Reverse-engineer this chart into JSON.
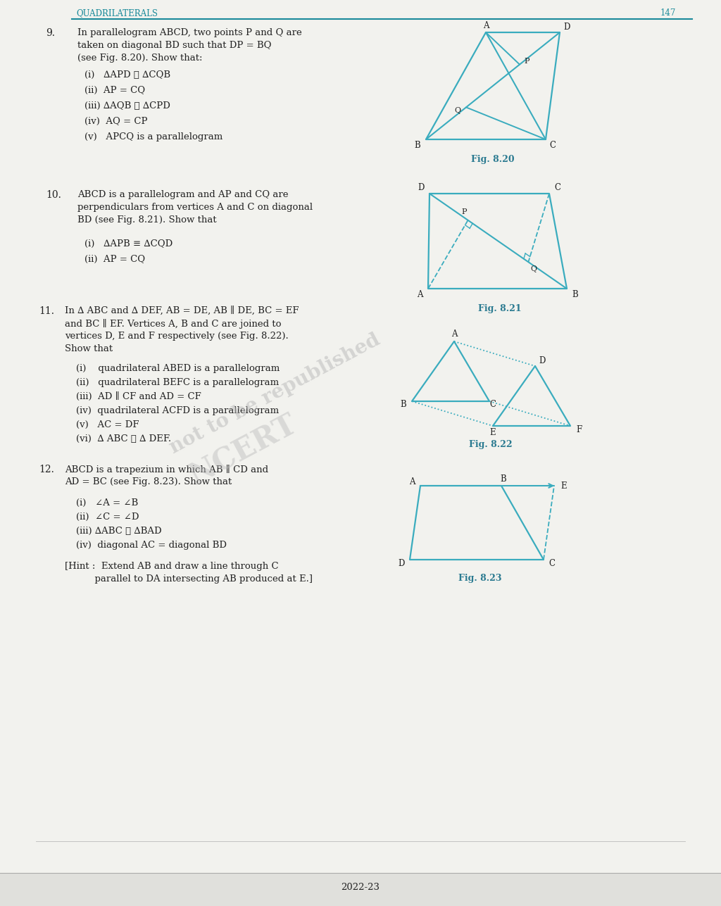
{
  "bg_color": "#f2f2ee",
  "header_text": "QUADRILATERALS",
  "header_page": "147",
  "header_color": "#1a8a9a",
  "footer_text": "2022-23",
  "cyan": "#3aacbe",
  "text_color": "#222222",
  "fig_color": "#2a7a90",
  "q9": {
    "number": "9.",
    "text_line1": "In parallelogram ABCD, two points P and Q are",
    "text_line2": "taken on diagonal BD such that DP = BQ",
    "text_line3": "(see Fig. 8.20). Show that:",
    "parts": [
      "(i)   ∆APD ≅ ∆CQB",
      "(ii)  AP = CQ",
      "(iii) ∆AQB ≅ ∆CPD",
      "(iv)  AQ = CP",
      "(v)   APCQ is a parallelogram"
    ],
    "fig_label": "Fig. 8.20"
  },
  "q10": {
    "number": "10.",
    "text_line1": "ABCD is a parallelogram and AP and CQ are",
    "text_line2": "perpendiculars from vertices A and C on diagonal",
    "text_line3": "BD (see Fig. 8.21). Show that",
    "parts": [
      "(i)   ∆APB ≡ ∆CQD",
      "(ii)  AP = CQ"
    ],
    "fig_label": "Fig. 8.21"
  },
  "q11": {
    "number": "11.",
    "text_line1": "In ∆ ABC and ∆ DEF, AB = DE, AB ∥ DE, BC = EF",
    "text_line2": "and BC ∥ EF. Vertices A, B and C are joined to",
    "text_line3": "vertices D, E and F respectively (see Fig. 8.22).",
    "text_line4": "Show that",
    "parts": [
      "(i)    quadrilateral ABED is a parallelogram",
      "(ii)   quadrilateral BEFC is a parallelogram",
      "(iii)  AD ∥ CF and AD = CF",
      "(iv)  quadrilateral ACFD is a parallelogram",
      "(v)   AC = DF",
      "(vi)  ∆ ABC ≅ ∆ DEF."
    ],
    "fig_label": "Fig. 8.22"
  },
  "q12": {
    "number": "12.",
    "text_line1": "ABCD is a trapezium in which AB ∥ CD and",
    "text_line2": "AD = BC (see Fig. 8.23). Show that",
    "parts": [
      "(i)   ∠A = ∠B",
      "(ii)  ∠C = ∠D",
      "(iii) ∆ABC ≅ ∆BAD",
      "(iv)  diagonal AC = diagonal BD"
    ],
    "hint_line1": "[Hint :  Extend AB and draw a line through C",
    "hint_line2": "          parallel to DA intersecting AB produced at E.]",
    "fig_label": "Fig. 8.23"
  }
}
